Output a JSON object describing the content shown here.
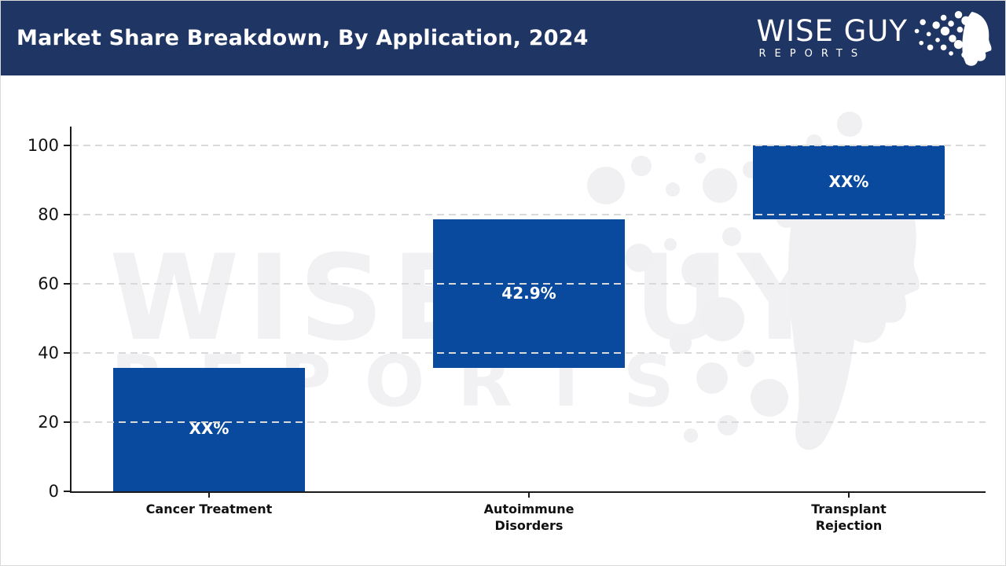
{
  "header": {
    "title": "Market Share Breakdown, By Application, 2024",
    "background": "#1f3563",
    "logo": {
      "wordmark": "WISE GUY",
      "subtitle": "REPORTS"
    }
  },
  "watermark": {
    "wordmark": "WISE GUY",
    "subtitle": "REPORTS"
  },
  "chart_data": {
    "type": "bar",
    "variant": "waterfall-stacked-float",
    "title": "Market Share Breakdown, By Application, 2024",
    "categories": [
      "Cancer Treatment",
      "Autoimmune\nDisorders",
      "Transplant\nRejection"
    ],
    "segments": [
      {
        "category": "Cancer Treatment",
        "start": 0,
        "end": 35.7,
        "label": "XX%"
      },
      {
        "category": "Autoimmune Disorders",
        "start": 35.7,
        "end": 78.6,
        "label": "42.9%"
      },
      {
        "category": "Transplant Rejection",
        "start": 78.6,
        "end": 100,
        "label": "XX%"
      }
    ],
    "bar_color": "#0a4a9e",
    "bar_label_color": "#ffffff",
    "ylim": [
      0,
      100
    ],
    "yticks": [
      0,
      20,
      40,
      60,
      80,
      100
    ],
    "xlabel": "",
    "ylabel": "",
    "grid": {
      "axis": "y",
      "style": "dashed",
      "color": "#d9d9d9",
      "over_bars": true
    },
    "legend": "none",
    "axis_color": "#1a1a1a"
  }
}
